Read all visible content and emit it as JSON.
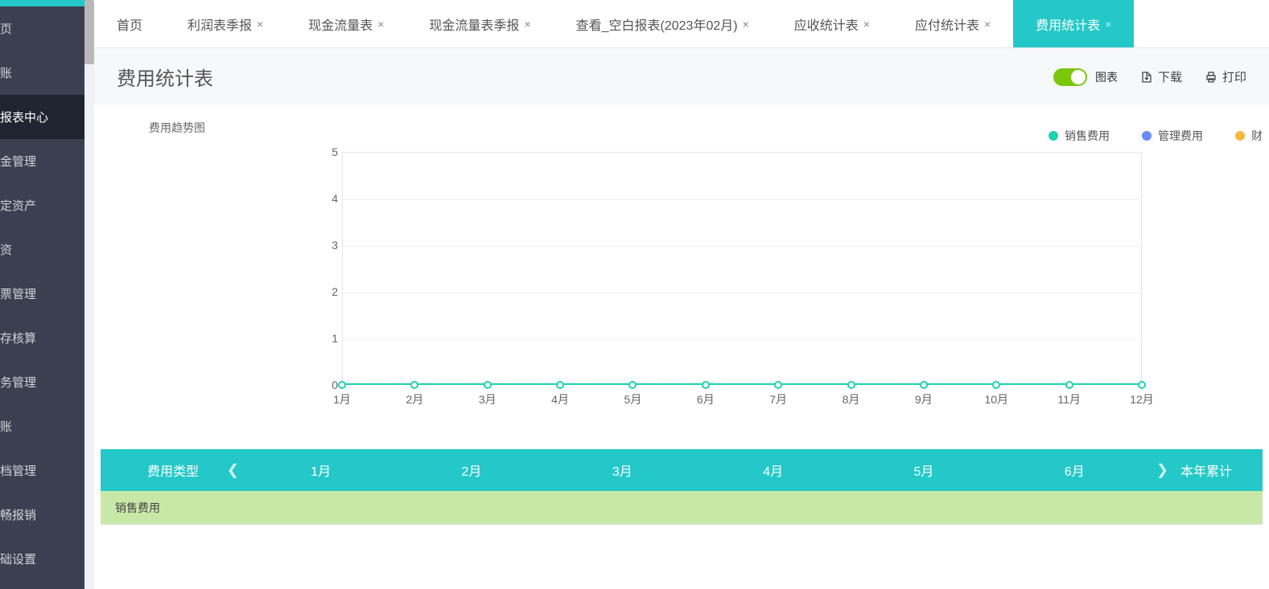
{
  "sidebar": {
    "items": [
      {
        "label": "页"
      },
      {
        "label": "账"
      },
      {
        "label": "报表中心",
        "active": true
      },
      {
        "label": "金管理"
      },
      {
        "label": "定资产"
      },
      {
        "label": "资"
      },
      {
        "label": "票管理"
      },
      {
        "label": "存核算"
      },
      {
        "label": "务管理"
      },
      {
        "label": "账"
      },
      {
        "label": "档管理"
      },
      {
        "label": "畅报销"
      },
      {
        "label": "础设置"
      }
    ]
  },
  "tabs": [
    {
      "label": "首页",
      "closable": false
    },
    {
      "label": "利润表季报",
      "closable": true
    },
    {
      "label": "现金流量表",
      "closable": true
    },
    {
      "label": "现金流量表季报",
      "closable": true
    },
    {
      "label": "查看_空白报表(2023年02月)",
      "closable": true
    },
    {
      "label": "应收统计表",
      "closable": true
    },
    {
      "label": "应付统计表",
      "closable": true
    },
    {
      "label": "费用统计表",
      "closable": true,
      "active": true
    }
  ],
  "page": {
    "title": "费用统计表",
    "toggle_label": "图表",
    "download_label": "下载",
    "print_label": "打印"
  },
  "chart": {
    "title": "费用趋势图",
    "type": "line",
    "legend": [
      {
        "label": "销售费用",
        "color": "#1fd1b2"
      },
      {
        "label": "管理费用",
        "color": "#6a8cf7"
      },
      {
        "label": "财",
        "color": "#f5b93e"
      }
    ],
    "x_labels": [
      "1月",
      "2月",
      "3月",
      "4月",
      "5月",
      "6月",
      "7月",
      "8月",
      "9月",
      "10月",
      "11月",
      "12月"
    ],
    "y_ticks": [
      0,
      1,
      2,
      3,
      4,
      5
    ],
    "ylim": [
      0,
      5
    ],
    "series_sales": [
      0,
      0,
      0,
      0,
      0,
      0,
      0,
      0,
      0,
      0,
      0,
      0
    ],
    "line_color": "#1fd1b2",
    "grid_color": "#f0f0f0",
    "border_color": "#e5e5e5",
    "background_color": "#ffffff",
    "marker_style": "circle",
    "marker_size": 10,
    "label_fontsize": 14
  },
  "table": {
    "header_bg": "#24c8c8",
    "header_color": "#ffffff",
    "row_bg": "#c8e8a8",
    "columns_first": "费用类型",
    "month_columns": [
      "1月",
      "2月",
      "3月",
      "4月",
      "5月",
      "6月"
    ],
    "columns_last": "本年累计",
    "rows": [
      {
        "type": "销售费用",
        "values": [
          "",
          "",
          "",
          "",
          "",
          ""
        ],
        "total": ""
      }
    ]
  }
}
